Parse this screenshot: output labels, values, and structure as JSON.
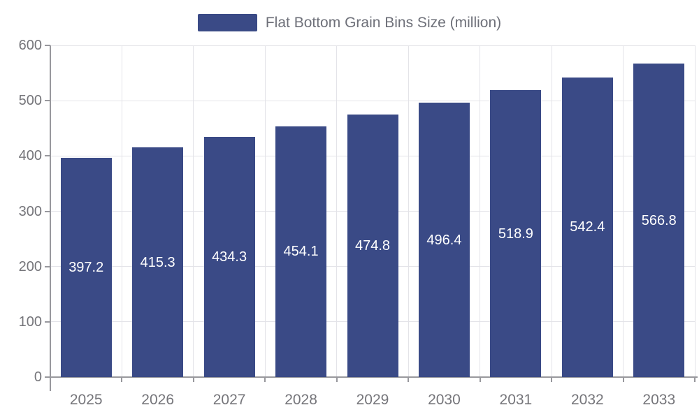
{
  "chart_data": {
    "type": "bar",
    "title": "Flat Bottom Grain Bins Size (million)",
    "legend": [
      "Flat Bottom Grain Bins Size (million)"
    ],
    "legend_position": "top-center",
    "categories": [
      "2025",
      "2026",
      "2027",
      "2028",
      "2029",
      "2030",
      "2031",
      "2032",
      "2033"
    ],
    "series": [
      {
        "name": "Flat Bottom Grain Bins Size (million)",
        "values": [
          397.2,
          415.3,
          434.3,
          454.1,
          474.8,
          496.4,
          518.9,
          542.4,
          566.8
        ]
      }
    ],
    "value_label_texts": [
      "397.2",
      "415.3",
      "434.3",
      "454.1",
      "474.8",
      "496.4",
      "518.9",
      "542.4",
      "566.8"
    ],
    "xlabel": "",
    "ylabel": "",
    "ylim": [
      0,
      600
    ],
    "yticks": [
      0,
      100,
      200,
      300,
      400,
      500,
      600
    ],
    "grid": true,
    "value_labels": "inside-center",
    "colors": {
      "bar": "#3a4a86",
      "grid": "#e3e3e8",
      "axis": "#98989d",
      "tick_label": "#75757a",
      "legend_text": "#6e7079",
      "value_label": "#ffffff",
      "background": "#ffffff"
    }
  }
}
